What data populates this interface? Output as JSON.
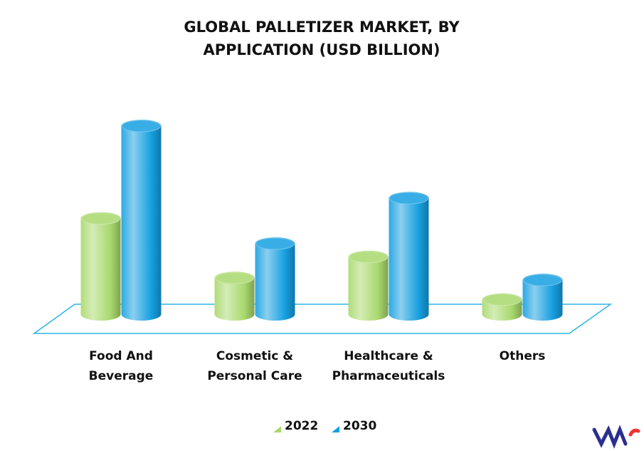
{
  "chart_data": {
    "type": "bar",
    "title": "GLOBAL PALLETIZER MARKET, BY APPLICATION (USD BILLION)",
    "categories": [
      "Food And Beverage",
      "Cosmetic & Personal Care",
      "Healthcare & Pharmaceuticals",
      "Others"
    ],
    "series": [
      {
        "name": "2022",
        "color": "#a8d86c",
        "values": [
          1.55,
          0.7,
          1.0,
          0.39
        ]
      },
      {
        "name": "2030",
        "color": "#169fe0",
        "values": [
          2.87,
          1.19,
          1.84,
          0.67
        ]
      }
    ]
  }
}
